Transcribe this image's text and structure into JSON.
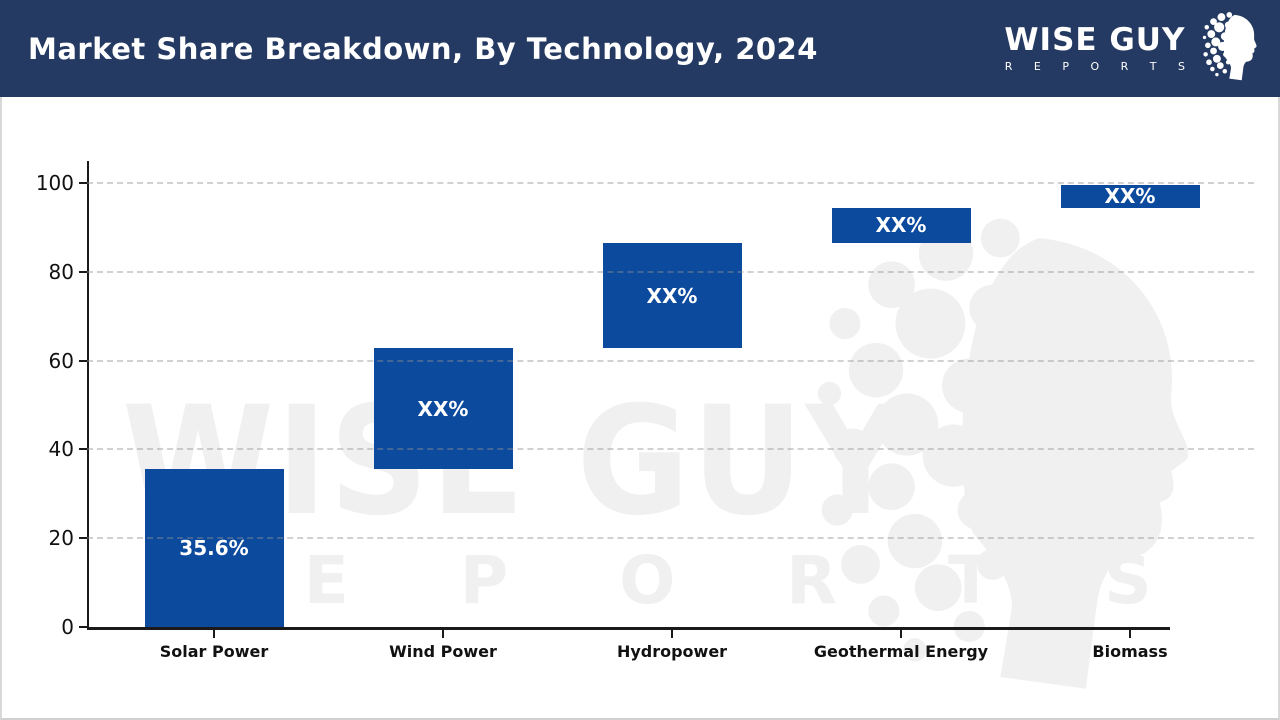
{
  "header": {
    "title": "Market Share Breakdown, By Technology, 2024",
    "logo": {
      "line1": "WISE GUY",
      "line2": "R E P O R T S"
    }
  },
  "watermark": {
    "line1": "WISE GUY",
    "line2": "R E P O R T S"
  },
  "colors": {
    "header_bg": "#243a62",
    "bar": "#0c4a9e",
    "grid": "#919191",
    "axis": "#1a1a1a",
    "watermark": "#f0f0f0",
    "title_text": "#ffffff"
  },
  "chart_data": {
    "type": "bar",
    "subtype": "waterfall",
    "title": "Market Share Breakdown, By Technology, 2024",
    "xlabel": "",
    "ylabel": "",
    "categories": [
      "Solar Power",
      "Wind Power",
      "Hydropower",
      "Geothermal Energy",
      "Biomass"
    ],
    "segments": [
      {
        "category": "Solar Power",
        "start": 0,
        "end": 35.6,
        "label": "35.6%"
      },
      {
        "category": "Wind Power",
        "start": 35.6,
        "end": 62.8,
        "label": "XX%"
      },
      {
        "category": "Hydropower",
        "start": 62.8,
        "end": 86.5,
        "label": "XX%"
      },
      {
        "category": "Geothermal Energy",
        "start": 86.5,
        "end": 94.4,
        "label": "XX%"
      },
      {
        "category": "Biomass",
        "start": 94.4,
        "end": 99.6,
        "label": "XX%"
      }
    ],
    "yticks": [
      0,
      20,
      40,
      60,
      80,
      100
    ],
    "ylim": [
      0,
      105
    ],
    "grid": "dashed-horizontal, drawn over bars",
    "legend": "none"
  }
}
